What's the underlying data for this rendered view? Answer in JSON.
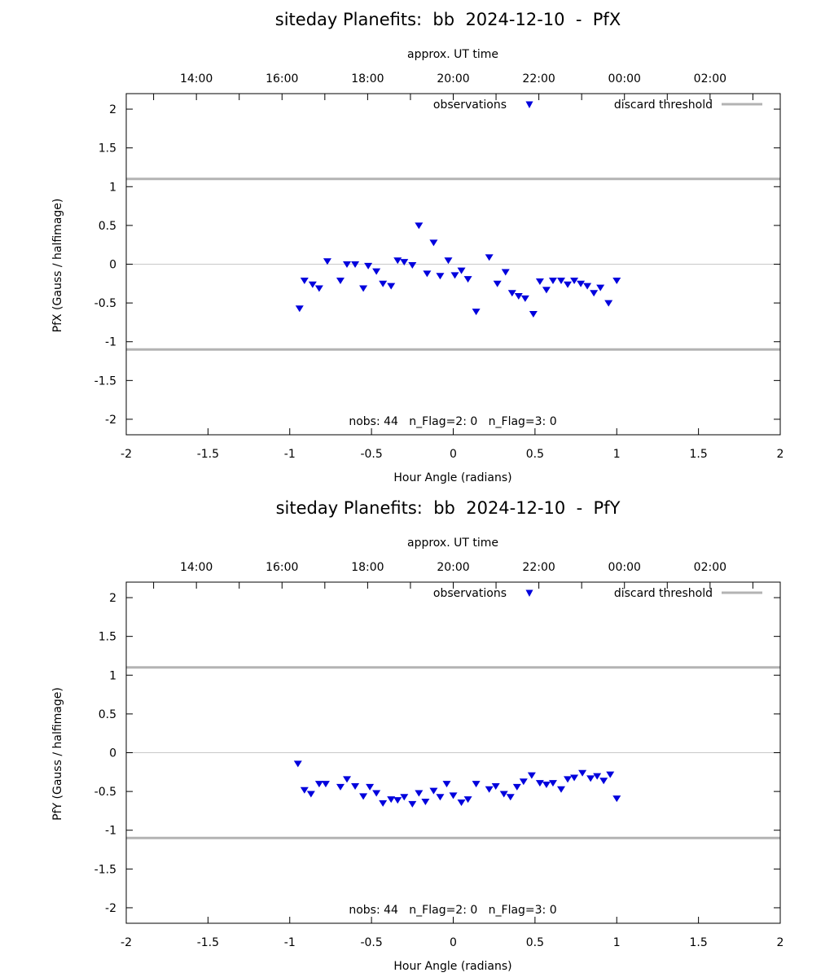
{
  "colors": {
    "marker": "#0000dd",
    "threshold": "#b3b3b3",
    "zero_line": "#c8c8c8",
    "axis": "#000000",
    "background": "#ffffff"
  },
  "charts": [
    {
      "id": "pfx",
      "title": "siteday Planefits:  bb  2024-12-10  -  PfX",
      "top_axis_title": "approx. UT time",
      "xlabel": "Hour Angle (radians)",
      "ylabel": "PfX (Gauss / halfimage)",
      "legend": {
        "observations_label": "observations",
        "threshold_label": "discard threshold"
      },
      "annotation": "nobs: 44   n_Flag=2: 0   n_Flag=3: 0",
      "chart_data": {
        "type": "scatter",
        "marker": "triangle-down",
        "xlabel": "Hour Angle (radians)",
        "ylabel": "PfX (Gauss / halfimage)",
        "xlim": [
          -2,
          2
        ],
        "ylim": [
          -2.2,
          2.2
        ],
        "x_ticks": [
          -2,
          -1.5,
          -1,
          -0.5,
          0,
          0.5,
          1,
          1.5,
          2
        ],
        "y_ticks": [
          2,
          1.5,
          1,
          0.5,
          0,
          -0.5,
          -1,
          -1.5,
          -2
        ],
        "top_axis": {
          "labels": [
            "14:00",
            "16:00",
            "18:00",
            "20:00",
            "22:00",
            "00:00",
            "02:00"
          ],
          "label_positions": [
            -1.5708,
            -1.0472,
            -0.5236,
            0,
            0.5236,
            1.0472,
            1.5708
          ],
          "tick_positions": [
            -1.8326,
            -1.5708,
            -1.309,
            -1.0472,
            -0.7854,
            -0.5236,
            -0.2618,
            0,
            0.2618,
            0.5236,
            0.7854,
            1.0472,
            1.309,
            1.5708,
            1.8326
          ]
        },
        "discard_threshold": 1.1,
        "zero_line": 0,
        "nobs": 44,
        "n_flag2": 0,
        "n_flag3": 0,
        "series": [
          {
            "name": "observations",
            "points": [
              [
                -0.94,
                -0.57
              ],
              [
                -0.91,
                -0.21
              ],
              [
                -0.86,
                -0.26
              ],
              [
                -0.82,
                -0.31
              ],
              [
                -0.77,
                0.04
              ],
              [
                -0.69,
                -0.21
              ],
              [
                -0.65,
                0.0
              ],
              [
                -0.6,
                0.0
              ],
              [
                -0.55,
                -0.31
              ],
              [
                -0.52,
                -0.02
              ],
              [
                -0.47,
                -0.09
              ],
              [
                -0.43,
                -0.25
              ],
              [
                -0.38,
                -0.28
              ],
              [
                -0.34,
                0.05
              ],
              [
                -0.3,
                0.03
              ],
              [
                -0.25,
                -0.01
              ],
              [
                -0.21,
                0.5
              ],
              [
                -0.16,
                -0.12
              ],
              [
                -0.12,
                0.28
              ],
              [
                -0.08,
                -0.15
              ],
              [
                -0.03,
                0.05
              ],
              [
                0.01,
                -0.14
              ],
              [
                0.05,
                -0.08
              ],
              [
                0.09,
                -0.19
              ],
              [
                0.14,
                -0.61
              ],
              [
                0.22,
                0.09
              ],
              [
                0.27,
                -0.25
              ],
              [
                0.32,
                -0.1
              ],
              [
                0.36,
                -0.37
              ],
              [
                0.4,
                -0.41
              ],
              [
                0.44,
                -0.44
              ],
              [
                0.49,
                -0.64
              ],
              [
                0.53,
                -0.22
              ],
              [
                0.57,
                -0.33
              ],
              [
                0.61,
                -0.21
              ],
              [
                0.66,
                -0.21
              ],
              [
                0.7,
                -0.26
              ],
              [
                0.74,
                -0.21
              ],
              [
                0.78,
                -0.25
              ],
              [
                0.82,
                -0.28
              ],
              [
                0.86,
                -0.37
              ],
              [
                0.9,
                -0.3
              ],
              [
                0.95,
                -0.5
              ],
              [
                1.0,
                -0.21
              ]
            ]
          }
        ]
      }
    },
    {
      "id": "pfy",
      "title": "siteday Planefits:  bb  2024-12-10  -  PfY",
      "top_axis_title": "approx. UT time",
      "xlabel": "Hour Angle (radians)",
      "ylabel": "PfY (Gauss / halfimage)",
      "legend": {
        "observations_label": "observations",
        "threshold_label": "discard threshold"
      },
      "annotation": "nobs: 44   n_Flag=2: 0   n_Flag=3: 0",
      "chart_data": {
        "type": "scatter",
        "marker": "triangle-down",
        "xlabel": "Hour Angle (radians)",
        "ylabel": "PfY (Gauss / halfimage)",
        "xlim": [
          -2,
          2
        ],
        "ylim": [
          -2.2,
          2.2
        ],
        "x_ticks": [
          -2,
          -1.5,
          -1,
          -0.5,
          0,
          0.5,
          1,
          1.5,
          2
        ],
        "y_ticks": [
          2,
          1.5,
          1,
          0.5,
          0,
          -0.5,
          -1,
          -1.5,
          -2
        ],
        "top_axis": {
          "labels": [
            "14:00",
            "16:00",
            "18:00",
            "20:00",
            "22:00",
            "00:00",
            "02:00"
          ],
          "label_positions": [
            -1.5708,
            -1.0472,
            -0.5236,
            0,
            0.5236,
            1.0472,
            1.5708
          ],
          "tick_positions": [
            -1.8326,
            -1.5708,
            -1.309,
            -1.0472,
            -0.7854,
            -0.5236,
            -0.2618,
            0,
            0.2618,
            0.5236,
            0.7854,
            1.0472,
            1.309,
            1.5708,
            1.8326
          ]
        },
        "discard_threshold": 1.1,
        "zero_line": 0,
        "nobs": 44,
        "n_flag2": 0,
        "n_flag3": 0,
        "series": [
          {
            "name": "observations",
            "points": [
              [
                -0.95,
                -0.14
              ],
              [
                -0.91,
                -0.48
              ],
              [
                -0.87,
                -0.53
              ],
              [
                -0.82,
                -0.4
              ],
              [
                -0.78,
                -0.4
              ],
              [
                -0.69,
                -0.44
              ],
              [
                -0.65,
                -0.34
              ],
              [
                -0.6,
                -0.43
              ],
              [
                -0.55,
                -0.56
              ],
              [
                -0.51,
                -0.44
              ],
              [
                -0.47,
                -0.52
              ],
              [
                -0.43,
                -0.65
              ],
              [
                -0.38,
                -0.6
              ],
              [
                -0.34,
                -0.61
              ],
              [
                -0.3,
                -0.57
              ],
              [
                -0.25,
                -0.66
              ],
              [
                -0.21,
                -0.52
              ],
              [
                -0.17,
                -0.63
              ],
              [
                -0.12,
                -0.49
              ],
              [
                -0.08,
                -0.57
              ],
              [
                -0.04,
                -0.4
              ],
              [
                0.0,
                -0.55
              ],
              [
                0.05,
                -0.64
              ],
              [
                0.09,
                -0.6
              ],
              [
                0.14,
                -0.4
              ],
              [
                0.22,
                -0.47
              ],
              [
                0.26,
                -0.43
              ],
              [
                0.31,
                -0.53
              ],
              [
                0.35,
                -0.57
              ],
              [
                0.39,
                -0.44
              ],
              [
                0.43,
                -0.37
              ],
              [
                0.48,
                -0.29
              ],
              [
                0.53,
                -0.39
              ],
              [
                0.57,
                -0.41
              ],
              [
                0.61,
                -0.39
              ],
              [
                0.66,
                -0.47
              ],
              [
                0.7,
                -0.34
              ],
              [
                0.74,
                -0.32
              ],
              [
                0.79,
                -0.26
              ],
              [
                0.84,
                -0.33
              ],
              [
                0.88,
                -0.3
              ],
              [
                0.92,
                -0.36
              ],
              [
                0.96,
                -0.28
              ],
              [
                1.0,
                -0.59
              ]
            ]
          }
        ]
      }
    }
  ]
}
